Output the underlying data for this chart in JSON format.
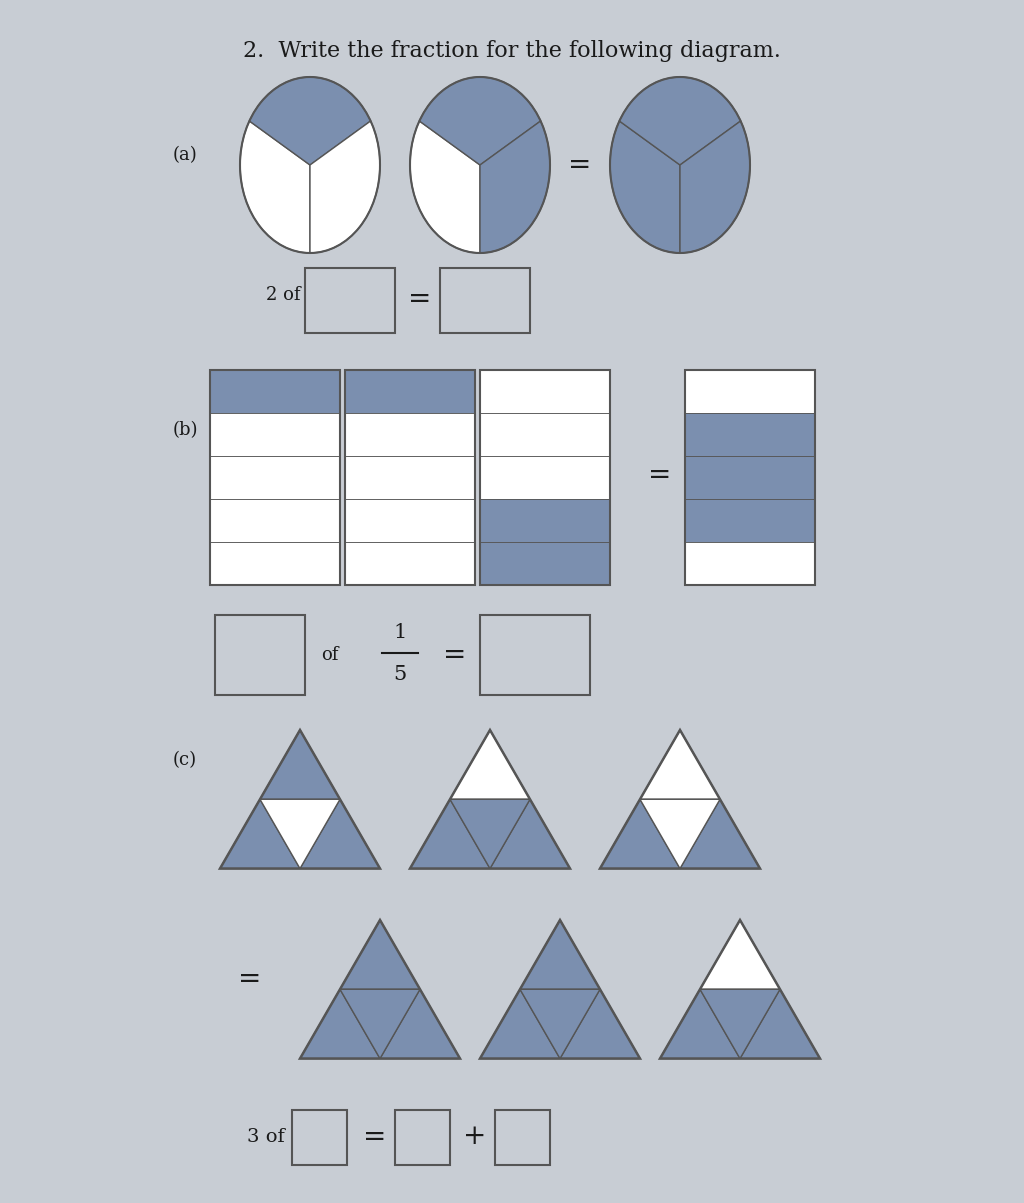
{
  "bg_color": "#c8cdd4",
  "title": "2.  Write the fraction for the following diagram.",
  "blue_color": "#7b8faf",
  "line_color": "#555555",
  "label_a": "(a)",
  "label_b": "(b)",
  "label_c": "(c)"
}
